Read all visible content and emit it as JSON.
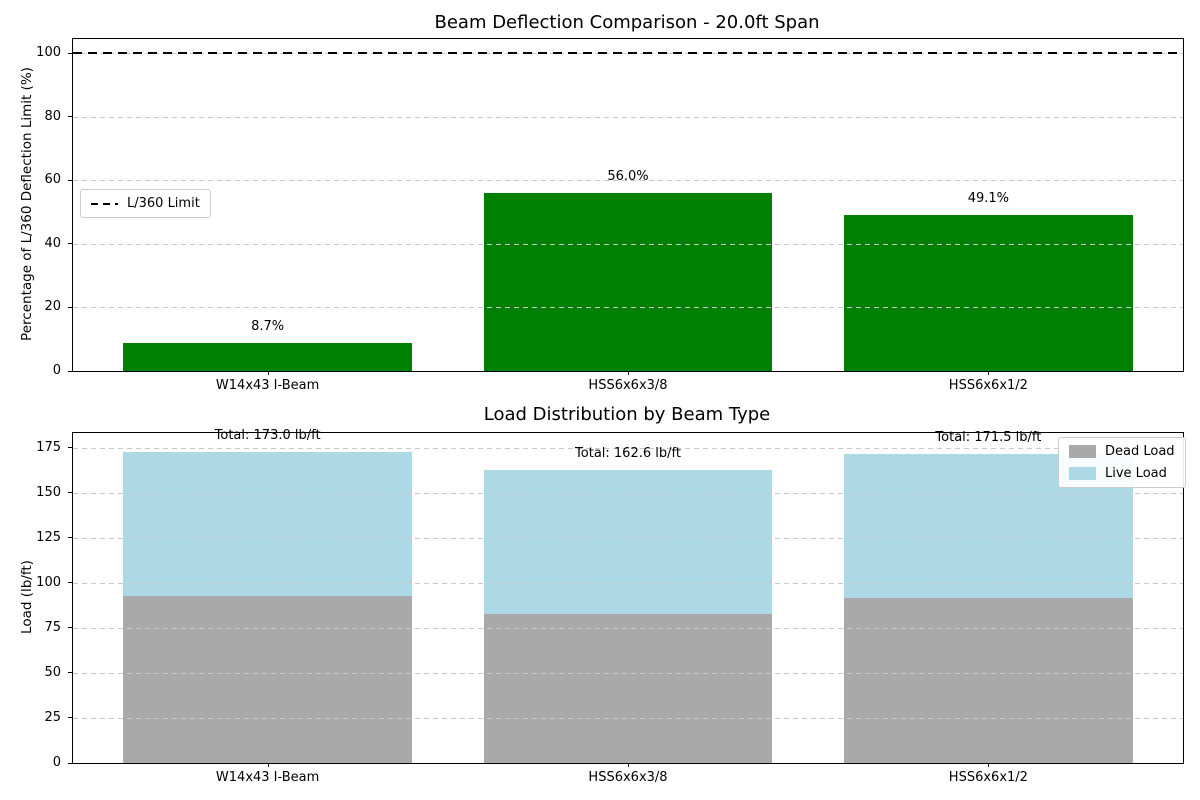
{
  "figure": {
    "background": "#ffffff"
  },
  "chart_data": [
    {
      "type": "bar",
      "title": "Beam Deflection Comparison - 20.0ft Span",
      "ylabel": "Percentage of L/360 Deflection Limit (%)",
      "categories": [
        "W14x43 I-Beam",
        "HSS6x6x3/8",
        "HSS6x6x1/2"
      ],
      "values": [
        8.7,
        56.0,
        49.1
      ],
      "bar_labels": [
        "8.7%",
        "56.0%",
        "49.1%"
      ],
      "bar_color": "#008000",
      "yticks": [
        0,
        20,
        40,
        60,
        80,
        100
      ],
      "ylim": [
        0,
        104.5
      ],
      "grid": {
        "axis": "y",
        "style": "dashed",
        "color": "#c9c9c9"
      },
      "hline": {
        "value": 100,
        "label": "L/360 Limit",
        "color": "#000000",
        "style": "dashed"
      },
      "legend": {
        "position": "center-left",
        "entries": [
          {
            "label": "L/360 Limit",
            "marker": "dashed-line",
            "color": "#000000"
          }
        ]
      }
    },
    {
      "type": "stacked-bar",
      "title": "Load Distribution by Beam Type",
      "ylabel": "Load (lb/ft)",
      "categories": [
        "W14x43 I-Beam",
        "HSS6x6x3/8",
        "HSS6x6x1/2"
      ],
      "series": [
        {
          "name": "Dead Load",
          "color": "#a9a9a9",
          "values": [
            93.0,
            82.6,
            91.5
          ]
        },
        {
          "name": "Live Load",
          "color": "#add8e6",
          "values": [
            80.0,
            80.0,
            80.0
          ]
        }
      ],
      "totals": [
        173.0,
        162.6,
        171.5
      ],
      "total_labels": [
        "Total: 173.0 lb/ft",
        "Total: 162.6 lb/ft",
        "Total: 171.5 lb/ft"
      ],
      "yticks": [
        0,
        25,
        50,
        75,
        100,
        125,
        150,
        175
      ],
      "ylim": [
        0,
        183.3
      ],
      "grid": {
        "axis": "y",
        "style": "dashed",
        "color": "#c9c9c9"
      },
      "legend": {
        "position": "top-right",
        "entries": [
          {
            "label": "Dead Load",
            "marker": "patch",
            "color": "#a9a9a9"
          },
          {
            "label": "Live Load",
            "marker": "patch",
            "color": "#add8e6"
          }
        ]
      }
    }
  ]
}
